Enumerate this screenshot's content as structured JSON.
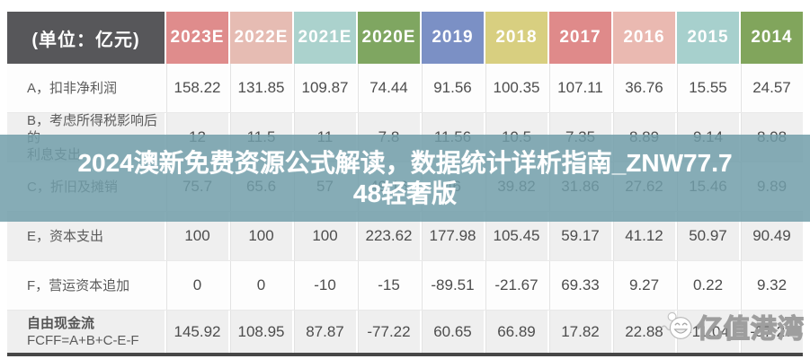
{
  "table": {
    "unit_label": "(单位：亿元)",
    "header_bg": "#57575a",
    "columns": [
      {
        "label": "2023E",
        "color": "#df8c8c"
      },
      {
        "label": "2022E",
        "color": "#e6bcb3"
      },
      {
        "label": "2021E",
        "color": "#abd2cd"
      },
      {
        "label": "2020E",
        "color": "#7fa661"
      },
      {
        "label": "2019",
        "color": "#7b90c5"
      },
      {
        "label": "2018",
        "color": "#d8cf80"
      },
      {
        "label": "2017",
        "color": "#df8a8a"
      },
      {
        "label": "2016",
        "color": "#eab9b1"
      },
      {
        "label": "2015",
        "color": "#a7d0cd"
      },
      {
        "label": "2014",
        "color": "#81a55c"
      }
    ],
    "rows": [
      {
        "label": "A，扣非净利润",
        "label2": "",
        "values": [
          "158.22",
          "131.85",
          "109.87",
          "74.44",
          "91.56",
          "100.35",
          "107.11",
          "36.76",
          "15.55",
          "24.57"
        ]
      },
      {
        "label": "B，考虑所得税影响后的",
        "label2": "利息支出",
        "values": [
          "12",
          "11.5",
          "11",
          "7.8",
          "11.56",
          "10.5",
          "7.35",
          "8.89",
          "9.14",
          "8.08"
        ]
      },
      {
        "label": "C，折旧及摊销",
        "label2": "",
        "values": [
          "75.7",
          "65.6",
          "57",
          "49.16",
          "46",
          "39.82",
          "31.86",
          "27.62",
          "15.46",
          "9.89"
        ]
      },
      {
        "label": "E，资本支出",
        "label2": "",
        "values": [
          "100",
          "100",
          "100",
          "223.62",
          "177.98",
          "105.45",
          "59.17",
          "41.12",
          "50.97",
          "90.49"
        ]
      },
      {
        "label": "F，营运资本追加",
        "label2": "",
        "values": [
          "0",
          "0",
          "-10",
          "-15",
          "-89.51",
          "-21.67",
          "69.33",
          "9.27",
          "0.22",
          "9.32"
        ]
      },
      {
        "label": "自由现金流",
        "label2": "FCFF=A+B+C-E-F",
        "total": true,
        "values": [
          "145.92",
          "108.95",
          "87.87",
          "-77.22",
          "60.65",
          "66.89",
          "17.82",
          "22.88",
          "-11.04",
          "-57.27"
        ]
      }
    ]
  },
  "overlay": {
    "bg": "rgba(113,157,169,0.85)",
    "lines": [
      "2024澳新免费资源公式解读，数据统计详析指南_ZNW77.7",
      "48轻奢版"
    ],
    "full_title": "2024澳新免费资源公式解读，数据统计详析指南_ZNW77.748轻奢版"
  },
  "watermark": {
    "text": "亿值港湾",
    "icon": "smiley-face-icon"
  },
  "chart_data": {
    "type": "table",
    "title": "(单位：亿元)",
    "columns": [
      "2023E",
      "2022E",
      "2021E",
      "2020E",
      "2019",
      "2018",
      "2017",
      "2016",
      "2015",
      "2014"
    ],
    "rows": [
      {
        "label": "A，扣非净利润",
        "values": [
          158.22,
          131.85,
          109.87,
          74.44,
          91.56,
          100.35,
          107.11,
          36.76,
          15.55,
          24.57
        ]
      },
      {
        "label": "B，考虑所得税影响后的利息支出",
        "values": [
          12,
          11.5,
          11,
          7.8,
          11.56,
          10.5,
          7.35,
          8.89,
          9.14,
          8.08
        ]
      },
      {
        "label": "C，折旧及摊销",
        "values": [
          75.7,
          65.6,
          57,
          49.16,
          46,
          39.82,
          31.86,
          27.62,
          15.46,
          9.89
        ]
      },
      {
        "label": "E，资本支出",
        "values": [
          100,
          100,
          100,
          223.62,
          177.98,
          105.45,
          59.17,
          41.12,
          50.97,
          90.49
        ]
      },
      {
        "label": "F，营运资本追加",
        "values": [
          0,
          0,
          -10,
          -15,
          -89.51,
          -21.67,
          69.33,
          9.27,
          0.22,
          9.32
        ]
      },
      {
        "label": "自由现金流 FCFF=A+B+C-E-F",
        "values": [
          145.92,
          108.95,
          87.87,
          -77.22,
          60.65,
          66.89,
          17.82,
          22.88,
          -11.04,
          -57.27
        ]
      }
    ]
  }
}
